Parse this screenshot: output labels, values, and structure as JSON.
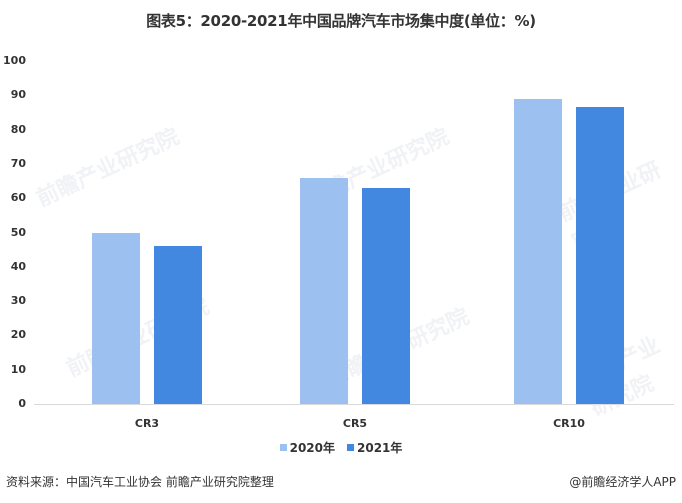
{
  "title": "图表5：2020-2021年中国品牌汽车市场集中度(单位：%)",
  "colors": {
    "2020": "#9cc0f0",
    "2021": "#4287e0",
    "axis": "#d9d9d9"
  },
  "yticks": [
    "100",
    "90",
    "80",
    "70",
    "60",
    "50",
    "40",
    "30",
    "20",
    "10",
    "0"
  ],
  "categories": [
    "CR3",
    "CR5",
    "CR10"
  ],
  "legend": [
    {
      "label": "2020年"
    },
    {
      "label": "2021年"
    }
  ],
  "footer": {
    "source": "资料来源：中国汽车工业协会 前瞻产业研究院整理",
    "credit": "@前瞻经济学人APP"
  },
  "watermark": "前瞻产业研究院",
  "chart_data": {
    "type": "bar",
    "title": "图表5：2020-2021年中国品牌汽车市场集中度(单位：%)",
    "categories": [
      "CR3",
      "CR5",
      "CR10"
    ],
    "series": [
      {
        "name": "2020年",
        "values": [
          50,
          66,
          89
        ]
      },
      {
        "name": "2021年",
        "values": [
          46,
          63,
          86.5
        ]
      }
    ],
    "xlabel": "",
    "ylabel": "",
    "ylim": [
      0,
      100
    ],
    "yticks": [
      0,
      10,
      20,
      30,
      40,
      50,
      60,
      70,
      80,
      90,
      100
    ],
    "grid": false,
    "legend_position": "bottom"
  }
}
